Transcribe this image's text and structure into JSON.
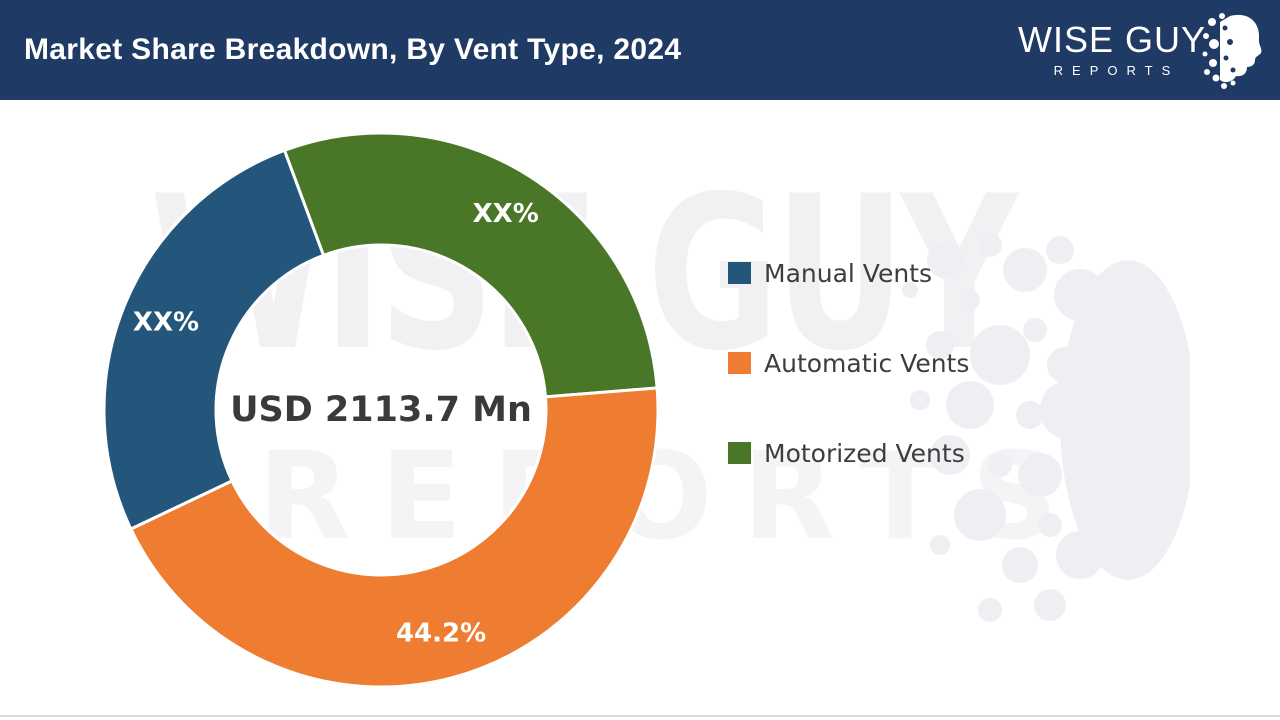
{
  "header": {
    "title": "Market Share Breakdown, By Vent Type, 2024",
    "brand": {
      "name": "WISE GUY",
      "subname": "REPORTS"
    }
  },
  "watermark": {
    "line1": "WISE GUY",
    "line2": "REPORTS"
  },
  "colors": {
    "header_bg": "#1F3A64",
    "center_text": "#3A3A3A",
    "legend_text": "#3D3D3D",
    "watermark": "#F1F1F4"
  },
  "chart_data": {
    "type": "pie",
    "subtype": "donut",
    "title": "Market Share Breakdown, By Vent Type, 2024",
    "center_label": "USD 2113.7 Mn",
    "total_value_usd_mn": 2113.7,
    "start_angle_deg": 110.4,
    "direction": "clockwise",
    "inner_radius_ratio": 0.6,
    "legend_position": "right",
    "segments": [
      {
        "label": "Manual Vents",
        "display_value": "XX%",
        "value_pct_est": 26.4,
        "color": "#24557A"
      },
      {
        "label": "Automatic Vents",
        "display_value": "44.2%",
        "value_pct_est": 44.2,
        "color": "#EE7D31"
      },
      {
        "label": "Motorized Vents",
        "display_value": "XX%",
        "value_pct_est": 29.4,
        "color": "#4A7628"
      }
    ],
    "draw_order": [
      2,
      1,
      0
    ]
  }
}
